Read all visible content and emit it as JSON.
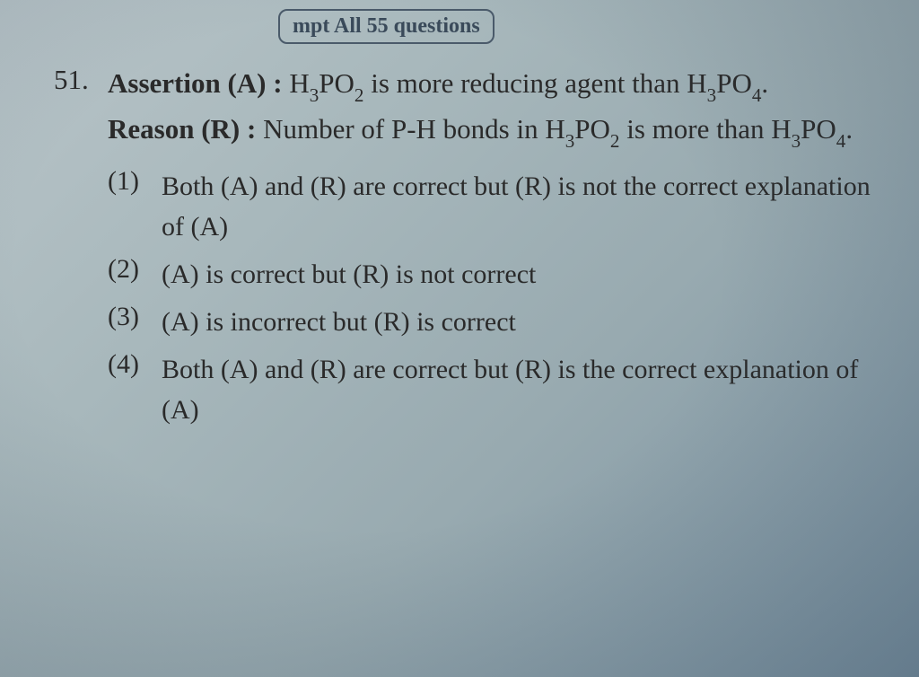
{
  "header_fragment": "mpt All 55 questions",
  "question_number": "51.",
  "assertion": {
    "label": "Assertion (A) :",
    "part1": " H",
    "sub1": "3",
    "part2": "PO",
    "sub2": "2",
    "part3": " is more reducing agent than H",
    "sub3": "3",
    "part4": "PO",
    "sub4": "4",
    "part5": "."
  },
  "reason": {
    "label": "Reason (R) :",
    "part1": " Number of P-H bonds in H",
    "sub1": "3",
    "part2": "PO",
    "sub2": "2",
    "part3": " is more than H",
    "sub3": "3",
    "part4": "PO",
    "sub4": "4",
    "part5": "."
  },
  "options": [
    {
      "num": "(1)",
      "text": "Both (A) and (R) are correct but (R) is not the correct explanation of (A)"
    },
    {
      "num": "(2)",
      "text": "(A) is correct but (R) is not correct"
    },
    {
      "num": "(3)",
      "text": "(A) is incorrect but (R) is correct"
    },
    {
      "num": "(4)",
      "text": "Both (A) and (R) are correct but (R) is the correct explanation of (A)"
    }
  ]
}
